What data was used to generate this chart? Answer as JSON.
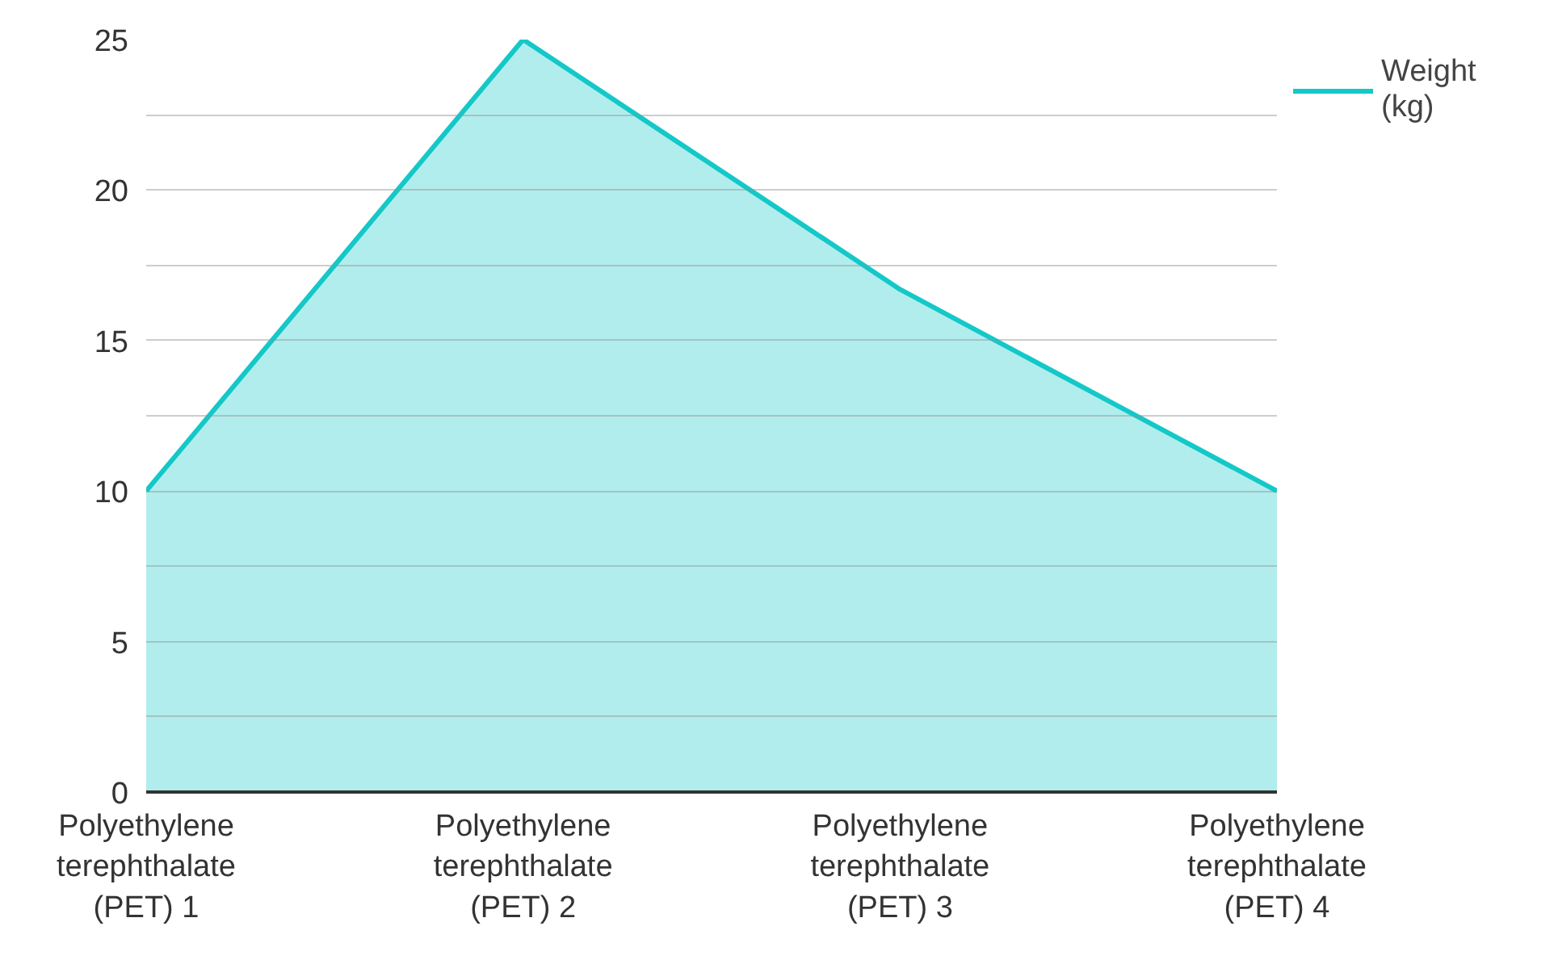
{
  "chart_data": {
    "type": "area",
    "categories": [
      "Polyethylene terephthalate (PET) 1",
      "Polyethylene terephthalate (PET) 2",
      "Polyethylene terephthalate (PET) 3",
      "Polyethylene terephthalate (PET) 4"
    ],
    "series": [
      {
        "name": "Weight (kg)",
        "color": "#14c8c8",
        "values": [
          10,
          25,
          16.7,
          10
        ]
      }
    ],
    "ylim": [
      0,
      25
    ],
    "yticks": [
      0,
      {
        "value": 2.5,
        "label": null
      },
      5,
      {
        "value": 7.5,
        "label": null
      },
      10,
      {
        "value": 12.5,
        "label": null
      },
      15,
      {
        "value": 17.5,
        "label": null
      },
      20,
      {
        "value": 22.5,
        "label": null
      },
      25
    ],
    "grid": "y",
    "legend": "top right"
  }
}
